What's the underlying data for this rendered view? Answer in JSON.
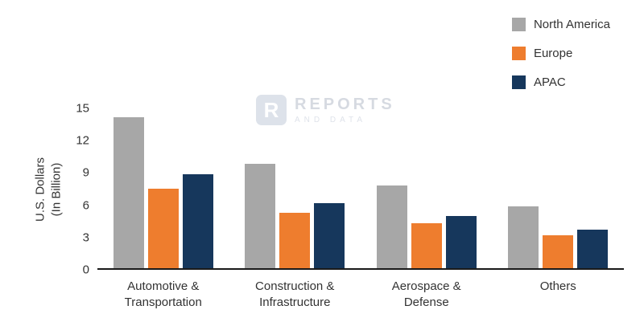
{
  "watermark": {
    "logo_letter": "R",
    "text": "REPORTS",
    "subtext": "AND DATA"
  },
  "chart_data": {
    "type": "bar",
    "title": "",
    "categories": [
      "Automotive & Transportation",
      "Construction & Infrastructure",
      "Aerospace & Defense",
      "Others"
    ],
    "categories_lines": [
      [
        "Automotive &",
        "Transportation"
      ],
      [
        "Construction &",
        "Infrastructure"
      ],
      [
        "Aerospace &",
        "Defense"
      ],
      [
        "Others"
      ]
    ],
    "series": [
      {
        "name": "North America",
        "color": "#a7a7a7",
        "values": [
          14.2,
          9.8,
          7.8,
          5.8
        ]
      },
      {
        "name": "Europe",
        "color": "#ee7d2e",
        "values": [
          7.5,
          5.2,
          4.2,
          3.1
        ]
      },
      {
        "name": "APAC",
        "color": "#16375c",
        "values": [
          8.8,
          6.1,
          4.9,
          3.6
        ]
      }
    ],
    "xlabel": "",
    "ylabel": "U.S. Dollars (In Billion)",
    "ylabel_lines": [
      "U.S. Dollars",
      "(In Billion)"
    ],
    "ylim": [
      0,
      15
    ],
    "yticks": [
      0,
      3,
      6,
      9,
      12,
      15
    ],
    "grid": false,
    "legend_position": "top-right"
  }
}
